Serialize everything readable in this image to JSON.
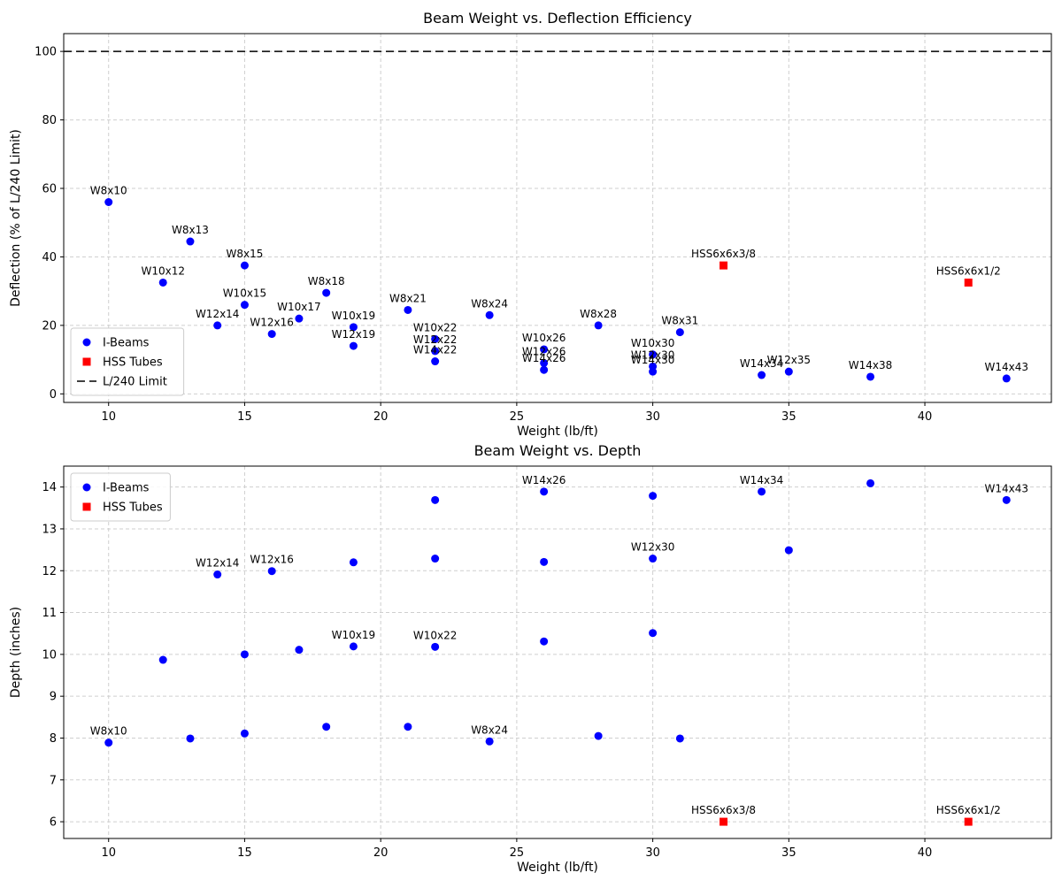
{
  "figure": {
    "background": "#ffffff",
    "ibeam_color": "#0000ff",
    "hss_color": "#ff0000",
    "limit_color": "#000000"
  },
  "chart_data": [
    {
      "id": "deflection",
      "type": "scatter",
      "title": "Beam Weight vs. Deflection Efficiency",
      "xlabel": "Weight (lb/ft)",
      "ylabel": "Deflection (% of L/240 Limit)",
      "xlim": [
        8.35,
        44.65
      ],
      "ylim": [
        -2.5,
        105.2
      ],
      "xticks": [
        10,
        15,
        20,
        25,
        30,
        35,
        40
      ],
      "yticks": [
        0,
        20,
        40,
        60,
        80,
        100
      ],
      "grid": true,
      "legend": {
        "position": "lower-left",
        "entries": [
          "I-Beams",
          "HSS Tubes",
          "L/240 Limit"
        ]
      },
      "hline": {
        "y": 100,
        "color": "#000000",
        "style": "dashed",
        "label": "L/240 Limit"
      },
      "series": [
        {
          "name": "I-Beams",
          "marker": "circle",
          "color": "#0000ff",
          "points": [
            {
              "label": "W8x10",
              "x": 10,
              "y": 56,
              "annotate": true
            },
            {
              "label": "W10x12",
              "x": 12,
              "y": 32.5,
              "annotate": true
            },
            {
              "label": "W8x13",
              "x": 13,
              "y": 44.5,
              "annotate": true
            },
            {
              "label": "W12x14",
              "x": 14,
              "y": 20,
              "annotate": true
            },
            {
              "label": "W8x15",
              "x": 15,
              "y": 37.5,
              "annotate": true
            },
            {
              "label": "W10x15",
              "x": 15,
              "y": 26,
              "annotate": true
            },
            {
              "label": "W12x16",
              "x": 16,
              "y": 17.5,
              "annotate": true
            },
            {
              "label": "W10x17",
              "x": 17,
              "y": 22,
              "annotate": true
            },
            {
              "label": "W8x18",
              "x": 18,
              "y": 29.5,
              "annotate": true
            },
            {
              "label": "W10x19",
              "x": 19,
              "y": 19.5,
              "annotate": true
            },
            {
              "label": "W12x19",
              "x": 19,
              "y": 14,
              "annotate": true
            },
            {
              "label": "W8x21",
              "x": 21,
              "y": 24.5,
              "annotate": true
            },
            {
              "label": "W10x22",
              "x": 22,
              "y": 16,
              "annotate": true
            },
            {
              "label": "W12x22",
              "x": 22,
              "y": 12.5,
              "annotate": true
            },
            {
              "label": "W14x22",
              "x": 22,
              "y": 9.5,
              "annotate": true
            },
            {
              "label": "W8x24",
              "x": 24,
              "y": 23,
              "annotate": true
            },
            {
              "label": "W10x26",
              "x": 26,
              "y": 13,
              "annotate": true
            },
            {
              "label": "W12x26",
              "x": 26,
              "y": 9,
              "annotate": true
            },
            {
              "label": "W14x26",
              "x": 26,
              "y": 7,
              "annotate": true
            },
            {
              "label": "W8x28",
              "x": 28,
              "y": 20,
              "annotate": true
            },
            {
              "label": "W10x30",
              "x": 30,
              "y": 11.5,
              "annotate": true
            },
            {
              "label": "W12x30",
              "x": 30,
              "y": 8,
              "annotate": true
            },
            {
              "label": "W14x30",
              "x": 30,
              "y": 6.5,
              "annotate": true
            },
            {
              "label": "W8x31",
              "x": 31,
              "y": 18,
              "annotate": true
            },
            {
              "label": "W14x34",
              "x": 34,
              "y": 5.5,
              "annotate": true
            },
            {
              "label": "W12x35",
              "x": 35,
              "y": 6.5,
              "annotate": true
            },
            {
              "label": "W14x38",
              "x": 38,
              "y": 5,
              "annotate": true
            },
            {
              "label": "W14x43",
              "x": 43,
              "y": 4.5,
              "annotate": true
            }
          ]
        },
        {
          "name": "HSS Tubes",
          "marker": "square",
          "color": "#ff0000",
          "points": [
            {
              "label": "HSS6x6x3/8",
              "x": 32.6,
              "y": 37.5,
              "annotate": true
            },
            {
              "label": "HSS6x6x1/2",
              "x": 41.6,
              "y": 32.5,
              "annotate": true
            }
          ]
        }
      ]
    },
    {
      "id": "depth",
      "type": "scatter",
      "title": "Beam Weight vs. Depth",
      "xlabel": "Weight (lb/ft)",
      "ylabel": "Depth (inches)",
      "xlim": [
        8.35,
        44.65
      ],
      "ylim": [
        5.6,
        14.5
      ],
      "xticks": [
        10,
        15,
        20,
        25,
        30,
        35,
        40
      ],
      "yticks": [
        6,
        7,
        8,
        9,
        10,
        11,
        12,
        13,
        14
      ],
      "grid": true,
      "legend": {
        "position": "upper-left",
        "entries": [
          "I-Beams",
          "HSS Tubes"
        ]
      },
      "series": [
        {
          "name": "I-Beams",
          "marker": "circle",
          "color": "#0000ff",
          "points": [
            {
              "label": "W8x10",
              "x": 10,
              "y": 7.89,
              "annotate": true
            },
            {
              "label": "W10x12",
              "x": 12,
              "y": 9.87,
              "annotate": false
            },
            {
              "label": "W8x13",
              "x": 13,
              "y": 7.99,
              "annotate": false
            },
            {
              "label": "W12x14",
              "x": 14,
              "y": 11.91,
              "annotate": true
            },
            {
              "label": "W8x15",
              "x": 15,
              "y": 8.11,
              "annotate": false
            },
            {
              "label": "W10x15",
              "x": 15,
              "y": 10.0,
              "annotate": false
            },
            {
              "label": "W12x16",
              "x": 16,
              "y": 11.99,
              "annotate": true
            },
            {
              "label": "W10x17",
              "x": 17,
              "y": 10.11,
              "annotate": false
            },
            {
              "label": "W8x18",
              "x": 18,
              "y": 8.27,
              "annotate": false
            },
            {
              "label": "W10x19",
              "x": 19,
              "y": 10.19,
              "annotate": true
            },
            {
              "label": "W12x19",
              "x": 19,
              "y": 12.2,
              "annotate": false
            },
            {
              "label": "W8x21",
              "x": 21,
              "y": 8.27,
              "annotate": false
            },
            {
              "label": "W10x22",
              "x": 22,
              "y": 10.18,
              "annotate": true
            },
            {
              "label": "W12x22",
              "x": 22,
              "y": 12.29,
              "annotate": false
            },
            {
              "label": "W14x22",
              "x": 22,
              "y": 13.69,
              "annotate": false
            },
            {
              "label": "W8x24",
              "x": 24,
              "y": 7.92,
              "annotate": true
            },
            {
              "label": "W10x26",
              "x": 26,
              "y": 10.31,
              "annotate": false
            },
            {
              "label": "W12x26",
              "x": 26,
              "y": 12.21,
              "annotate": false
            },
            {
              "label": "W14x26",
              "x": 26,
              "y": 13.89,
              "annotate": true
            },
            {
              "label": "W8x28",
              "x": 28,
              "y": 8.05,
              "annotate": false
            },
            {
              "label": "W10x30",
              "x": 30,
              "y": 10.51,
              "annotate": false
            },
            {
              "label": "W12x30",
              "x": 30,
              "y": 12.29,
              "annotate": true
            },
            {
              "label": "W14x30",
              "x": 30,
              "y": 13.79,
              "annotate": false
            },
            {
              "label": "W8x31",
              "x": 31,
              "y": 7.99,
              "annotate": false
            },
            {
              "label": "W14x34",
              "x": 34,
              "y": 13.89,
              "annotate": true
            },
            {
              "label": "W12x35",
              "x": 35,
              "y": 12.49,
              "annotate": false
            },
            {
              "label": "W14x38",
              "x": 38,
              "y": 14.09,
              "annotate": false
            },
            {
              "label": "W14x43",
              "x": 43,
              "y": 13.69,
              "annotate": true
            }
          ]
        },
        {
          "name": "HSS Tubes",
          "marker": "square",
          "color": "#ff0000",
          "points": [
            {
              "label": "HSS6x6x3/8",
              "x": 32.6,
              "y": 6,
              "annotate": true
            },
            {
              "label": "HSS6x6x1/2",
              "x": 41.6,
              "y": 6,
              "annotate": true
            }
          ]
        }
      ]
    }
  ]
}
